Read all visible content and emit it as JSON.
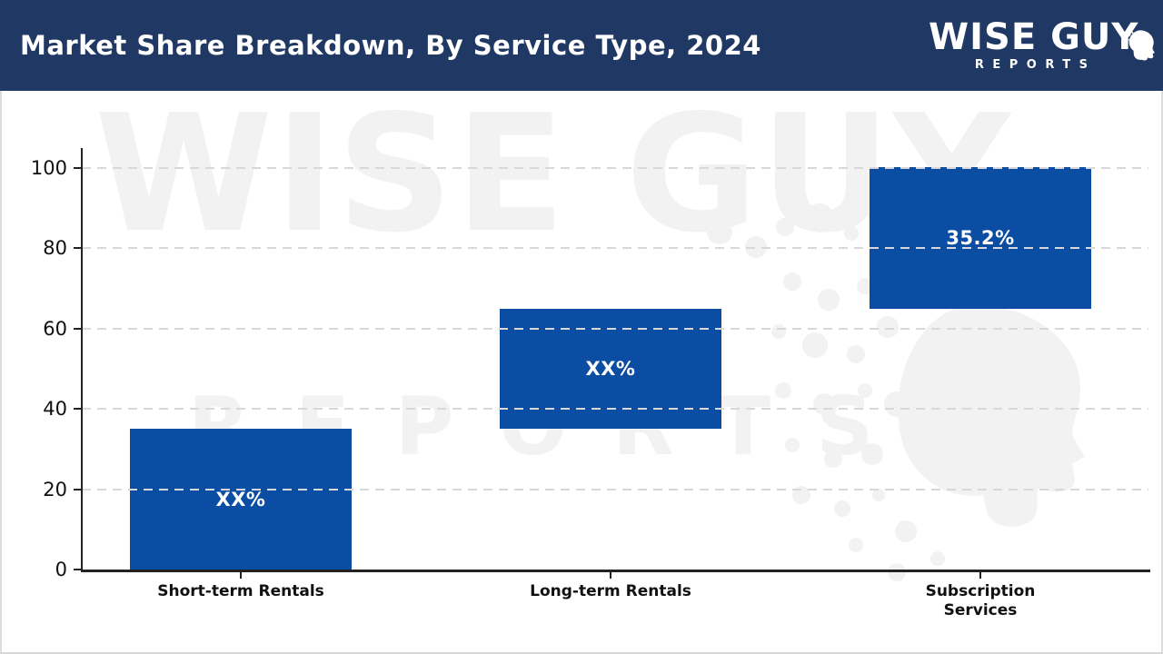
{
  "header": {
    "title": "Market Share Breakdown, By Service Type, 2024",
    "brand": {
      "name": "WISE GUY",
      "sub": "REPORTS",
      "face_icon": "dotted-face-profile"
    }
  },
  "watermark": {
    "line1": "WISE GUY",
    "line2": "REPORTS",
    "face_graphic": "dotted-face-profile"
  },
  "colors": {
    "header_bg": "#203864",
    "bar": "#0B4DA2",
    "grid": "#D8D8D8",
    "axis": "#222222",
    "tick_text": "#111111",
    "bar_label_text": "#FFFFFF",
    "watermark": "#F2F2F2"
  },
  "chart_data": {
    "type": "bar",
    "subtype": "floating-waterfall",
    "title": "Market Share Breakdown, By Service Type, 2024",
    "categories": [
      "Short-term Rentals",
      "Long-term Rentals",
      "Subscription Services"
    ],
    "bars": [
      {
        "category": "Short-term Rentals",
        "start": 0,
        "end": 35,
        "label": "XX%"
      },
      {
        "category": "Long-term Rentals",
        "start": 35,
        "end": 65,
        "label": "XX%"
      },
      {
        "category": "Subscription Services",
        "start": 65,
        "end": 100.2,
        "label": "35.2%"
      }
    ],
    "y_ticks": [
      0,
      20,
      40,
      60,
      80,
      100
    ],
    "ylim": [
      0,
      105
    ],
    "xlabel": "",
    "ylabel": "",
    "grid": "horizontal-dashed",
    "gridlines_over_bars": true,
    "legend": "none"
  }
}
